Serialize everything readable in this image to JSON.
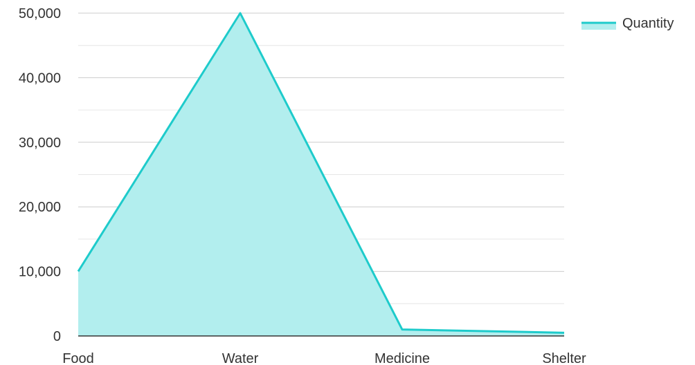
{
  "chart_data": {
    "type": "area",
    "categories": [
      "Food",
      "Water",
      "Medicine",
      "Shelter"
    ],
    "series": [
      {
        "name": "Quantity",
        "values": [
          10000,
          50000,
          1000,
          500
        ]
      }
    ],
    "ylim": [
      0,
      50000
    ],
    "yticks": [
      "0",
      "10,000",
      "20,000",
      "30,000",
      "40,000",
      "50,000"
    ],
    "grid": true,
    "legend": "top-right",
    "colors": {
      "line": "#1ecbcb",
      "fill": "#b2eeee",
      "grid": "#cccccc",
      "axis": "#333333"
    }
  }
}
